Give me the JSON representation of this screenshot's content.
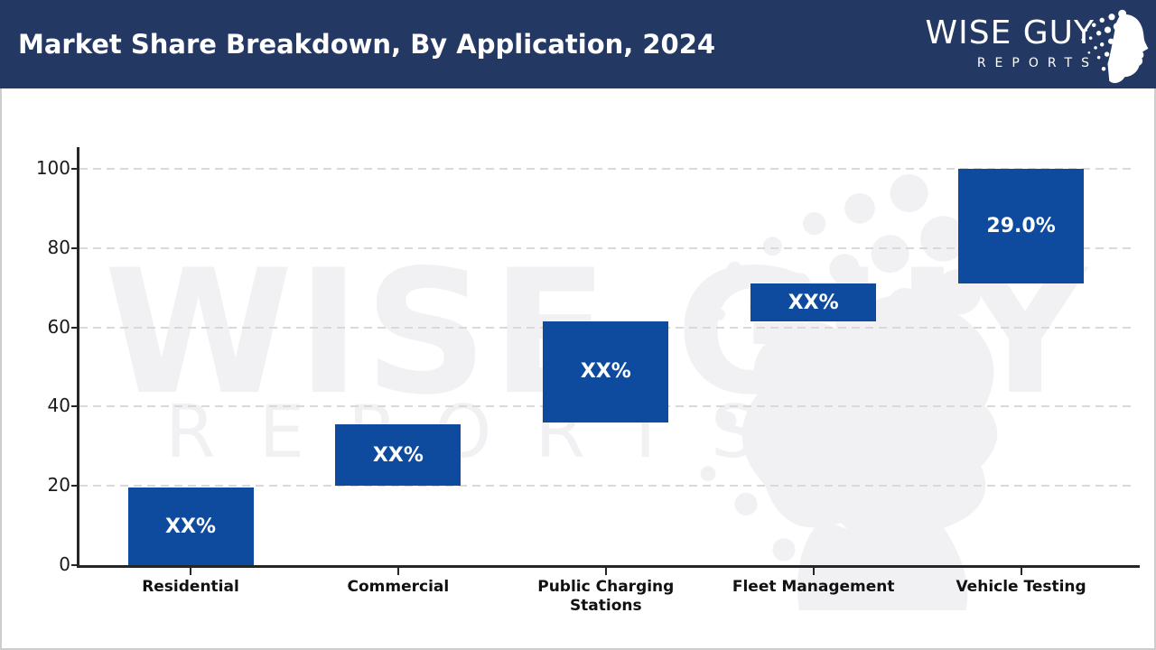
{
  "header": {
    "title": "Market Share Breakdown, By Application, 2024",
    "logo": {
      "line1": "WISE GUY",
      "line2": "REPORTS"
    }
  },
  "watermark": {
    "line1": "WISE GUY",
    "line2": "REPORTS"
  },
  "colors": {
    "header_bg": "#233863",
    "bar_fill": "#0e4a9e",
    "bar_label": "#ffffff",
    "grid_line": "#d9d9d9",
    "axis_line": "#262626",
    "tick_label": "#1a1a1a",
    "watermark_gray": "#f1f1f3",
    "frame_border": "#cdcdcd"
  },
  "chart_data": {
    "type": "waterfall-bar",
    "title": "Market Share Breakdown, By Application, 2024",
    "categories": [
      "Residential",
      "Commercial",
      "Public Charging Stations",
      "Fleet Management",
      "Vehicle Testing"
    ],
    "segments": [
      {
        "category": "Residential",
        "start": 0,
        "end": 19.5,
        "value": 19.5,
        "label": "XX%"
      },
      {
        "category": "Commercial",
        "start": 20,
        "end": 35.5,
        "value": 15.5,
        "label": "XX%"
      },
      {
        "category": "Public Charging Stations",
        "start": 36,
        "end": 61.5,
        "value": 25.5,
        "label": "XX%"
      },
      {
        "category": "Fleet Management",
        "start": 61.5,
        "end": 71,
        "value": 9.5,
        "label": "XX%"
      },
      {
        "category": "Vehicle Testing",
        "start": 71,
        "end": 100,
        "value": 29.0,
        "label": "29.0%"
      }
    ],
    "ylim": [
      0,
      100
    ],
    "yticks": [
      0,
      20,
      40,
      60,
      80,
      100
    ],
    "ytick_labels": [
      "0",
      "20",
      "40",
      "60",
      "80",
      "100"
    ],
    "xlabel": "",
    "ylabel": "",
    "grid": "horizontal-dashed",
    "legend_position": "none"
  }
}
